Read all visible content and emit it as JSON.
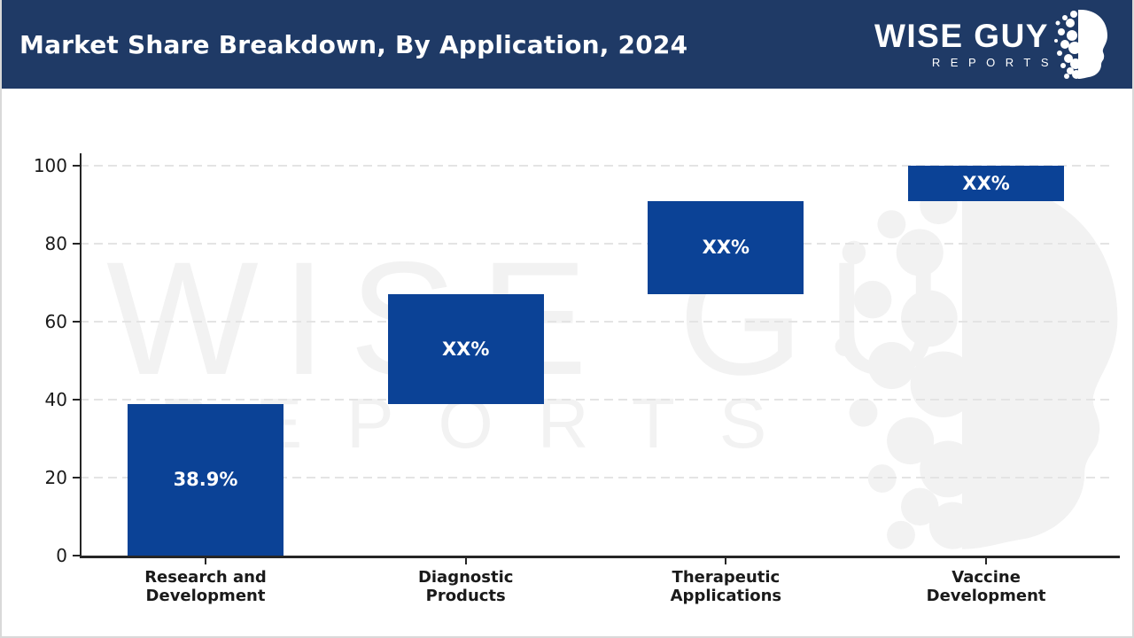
{
  "page": {
    "background": "#ffffff",
    "border_color": "#d9d9d9"
  },
  "header": {
    "title": "Market Share Breakdown, By Application, 2024",
    "background": "#1f3a66",
    "logo": {
      "wordmark": "WISE GUY",
      "subtitle": "REPORTS",
      "face_icon": "dotted-face-profile-icon"
    }
  },
  "watermark": {
    "line1": "WISE GUY",
    "line2": "REPORTS",
    "color": "#f2f2f2"
  },
  "chart_data": {
    "type": "bar",
    "variant": "waterfall",
    "title": "Market Share Breakdown, By Application, 2024",
    "xlabel": "",
    "ylabel": "",
    "ylim": [
      0,
      100
    ],
    "yticks": [
      0,
      20,
      40,
      60,
      80,
      100
    ],
    "grid": "horizontal-dashed",
    "legend": "none",
    "bar_color": "#0b4296",
    "value_label_color": "#ffffff",
    "axis_color": "#262626",
    "grid_color": "#e4e4e4",
    "categories": [
      "Research and Development",
      "Diagnostic Products",
      "Therapeutic Applications",
      "Vaccine Development"
    ],
    "category_lines": [
      [
        "Research and",
        "Development"
      ],
      [
        "Diagnostic",
        "Products"
      ],
      [
        "Therapeutic",
        "Applications"
      ],
      [
        "Vaccine",
        "Development"
      ]
    ],
    "segments": [
      {
        "category": "Research and Development",
        "from": 0,
        "to": 38.9,
        "label": "38.9%"
      },
      {
        "category": "Diagnostic Products",
        "from": 38.9,
        "to": 67,
        "label": "XX%"
      },
      {
        "category": "Therapeutic Applications",
        "from": 67,
        "to": 91,
        "label": "XX%"
      },
      {
        "category": "Vaccine Development",
        "from": 91,
        "to": 100,
        "label": "XX%"
      }
    ]
  }
}
